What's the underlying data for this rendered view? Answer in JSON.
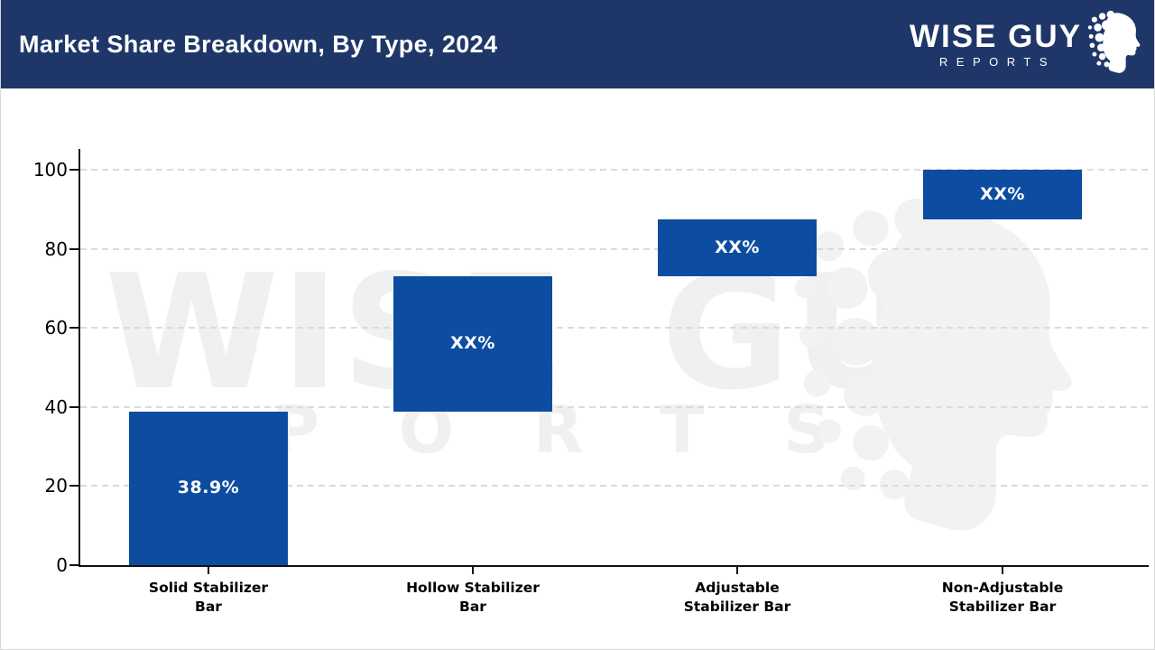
{
  "header": {
    "title": "Market Share Breakdown, By Type, 2024",
    "bg_color": "#1F3768",
    "logo": {
      "line1": "WISE GUY",
      "line2": "REPORTS"
    }
  },
  "watermark": {
    "line1": "WISE GUY",
    "line2": "PORTS"
  },
  "chart_data": {
    "type": "bar",
    "variant": "waterfall",
    "title": "Market Share Breakdown, By Type, 2024",
    "categories": [
      [
        "Solid Stabilizer",
        "Bar"
      ],
      [
        "Hollow Stabilizer",
        "Bar"
      ],
      [
        "Adjustable",
        "Stabilizer Bar"
      ],
      [
        "Non-Adjustable",
        "Stabilizer Bar"
      ]
    ],
    "series": [
      {
        "name": "Market Share (%)",
        "segments": [
          {
            "start": 0,
            "end": 38.9,
            "label": "38.9%"
          },
          {
            "start": 38.9,
            "end": 73,
            "label": "XX%"
          },
          {
            "start": 73,
            "end": 87.5,
            "label": "XX%"
          },
          {
            "start": 87.5,
            "end": 100,
            "label": "XX%"
          }
        ]
      }
    ],
    "ylim": [
      0,
      100
    ],
    "yticks": [
      0,
      20,
      40,
      60,
      80,
      100
    ],
    "xlabel": "",
    "ylabel": "",
    "bar_color": "#0D4DA1",
    "value_label_color": "#FFFFFF",
    "grid": "horizontal-dashed",
    "legend": "none"
  }
}
